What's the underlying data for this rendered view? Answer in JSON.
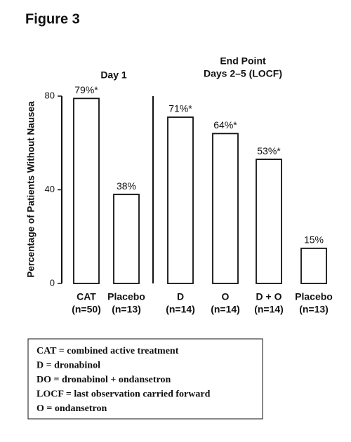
{
  "figure_title": "Figure 3",
  "y_axis_label": "Percentage of Patients Without Nausea",
  "chart_data": [
    {
      "type": "bar",
      "title": [
        "Day 1"
      ],
      "categories": [
        "CAT",
        "Placebo"
      ],
      "sample_sizes": [
        "(n=50)",
        "(n=13)"
      ],
      "values": [
        79,
        38
      ],
      "value_labels": [
        "79%*",
        "38%"
      ],
      "color": "#ffffff",
      "ylim": [
        0,
        80
      ],
      "yticks": [
        0,
        40,
        80
      ]
    },
    {
      "type": "bar",
      "title": [
        "End Point",
        "Days 2–5 (LOCF)"
      ],
      "categories": [
        "D",
        "O",
        "D + O",
        "Placebo"
      ],
      "sample_sizes": [
        "(n=14)",
        "(n=14)",
        "(n=14)",
        "(n=13)"
      ],
      "values": [
        71,
        64,
        53,
        15
      ],
      "value_labels": [
        "71%*",
        "64%*",
        "53%*",
        "15%"
      ],
      "color": "#ffffff",
      "ylim": [
        0,
        80
      ]
    }
  ],
  "legend_notes": [
    "CAT = combined active treatment",
    "D = dronabinol",
    "DO = dronabinol + ondansetron",
    "LOCF = last observation carried forward",
    "O = ondansetron"
  ]
}
